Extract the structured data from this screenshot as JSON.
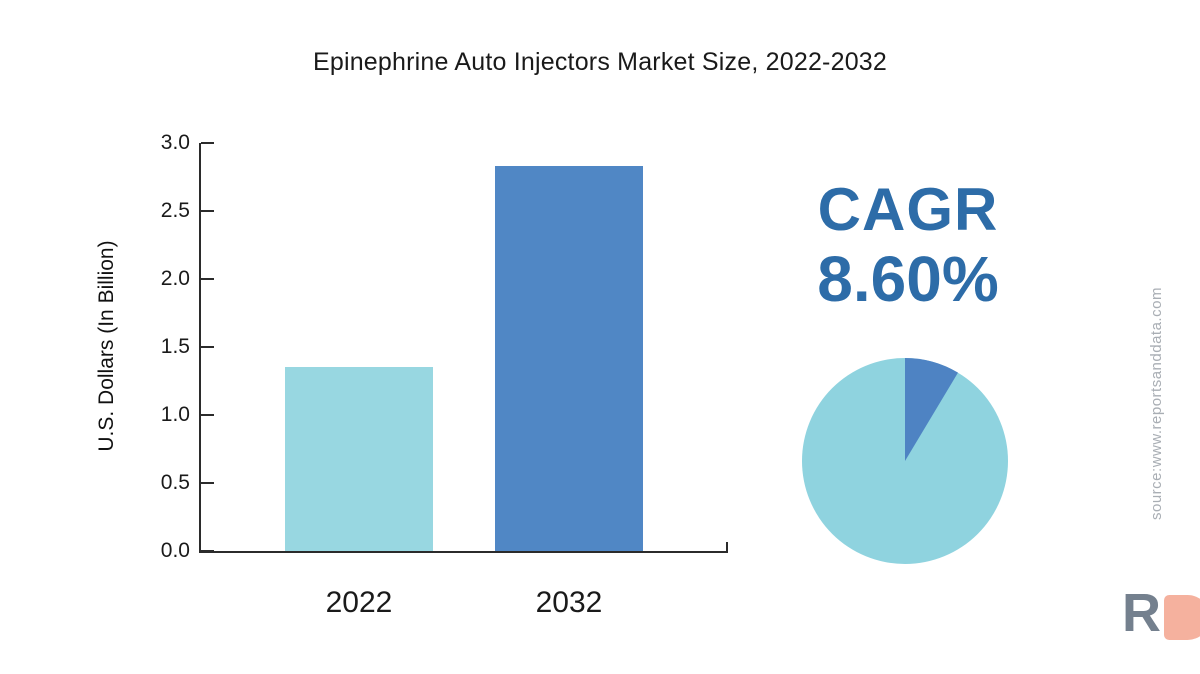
{
  "title": "Epinephrine Auto Injectors Market Size, 2022-2032",
  "chart_data": {
    "type": "bar",
    "title": "Epinephrine Auto Injectors Market Size, 2022-2032",
    "categories": [
      "2022",
      "2032"
    ],
    "values": [
      1.35,
      2.83
    ],
    "xlabel": "",
    "ylabel": "U.S. Dollars (In Billion)",
    "ylim": [
      0,
      3.0
    ],
    "yticks": [
      0.0,
      0.5,
      1.0,
      1.5,
      2.0,
      2.5,
      3.0
    ],
    "ytick_labels": [
      "0.0",
      "0.5",
      "1.0",
      "1.5",
      "2.0",
      "2.5",
      "3.0"
    ],
    "grid": false,
    "legend": "none",
    "bar_colors": [
      "#98d7e1",
      "#5087c5"
    ]
  },
  "cagr": {
    "label": "CAGR",
    "value": "8.60%",
    "percent": 8.6,
    "color": "#2d6ca8"
  },
  "pie": {
    "slice_percent": 8.6,
    "slice_color": "#4e83c3",
    "rest_color": "#8fd3df"
  },
  "source": {
    "text": "source:www.reportsanddata.com",
    "color": "#a9aeb4"
  },
  "logo": {
    "letter_r": "R",
    "r_color": "#74808e",
    "d_color": "#f5b19e"
  },
  "colors": {
    "axis": "#2b2b2b",
    "text": "#1a1a1a",
    "background": "#ffffff"
  }
}
